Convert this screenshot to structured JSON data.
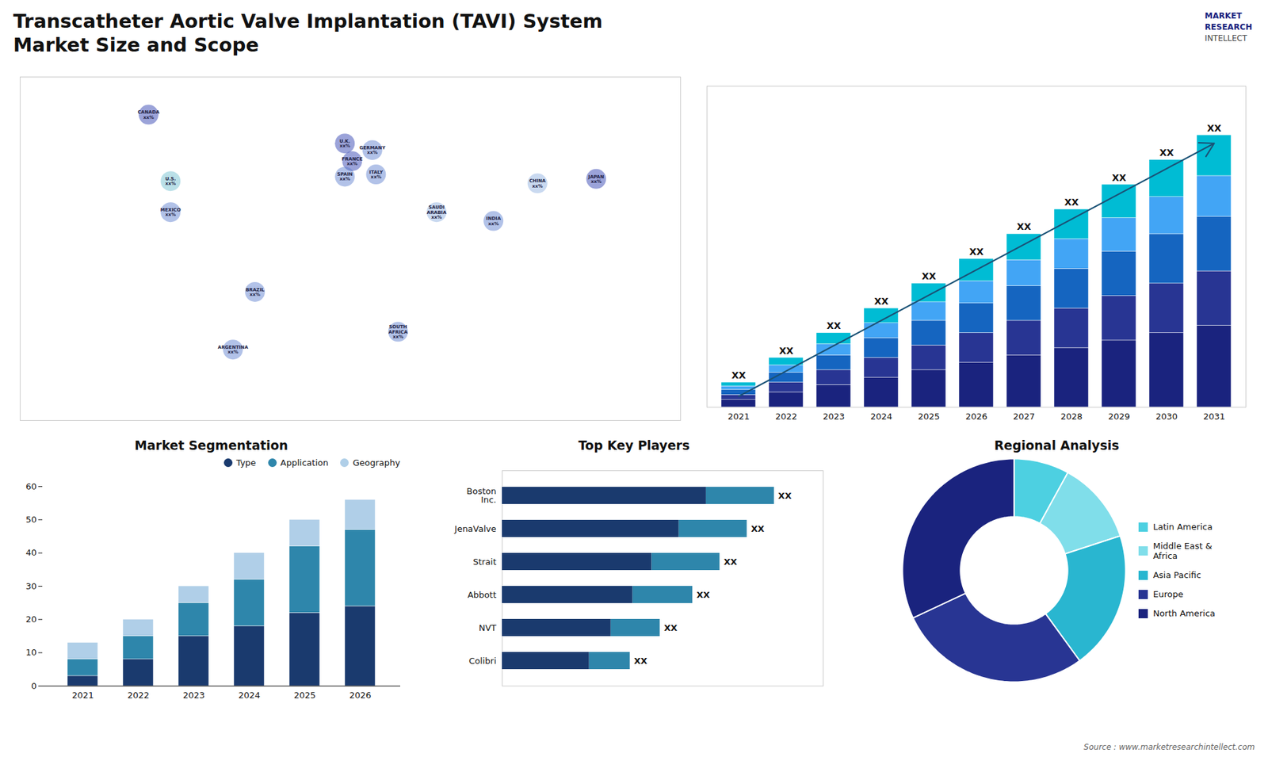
{
  "title": "Transcatheter Aortic Valve Implantation (TAVI) System",
  "subtitle": "Market Size and Scope",
  "annotations": [
    {
      "text": "MARKET",
      "color": "#1a237e"
    },
    {
      "text": "RESEARCH",
      "color": "#1a237e"
    },
    {
      "text": "INTELLECT",
      "color": "#444444"
    },
    {
      "text": "Source : www.marketresearchintellect.com",
      "color": "#666666"
    }
  ],
  "chart_data": [
    {
      "type": "map",
      "xlim": [
        -180,
        180
      ],
      "ylim": [
        -70,
        85
      ],
      "tick_labels": false,
      "annotations": [
        {
          "text": "CANADA\nxx%",
          "x": -110,
          "y": 68,
          "color": "#2233aa"
        },
        {
          "text": "U.K.\nxx%",
          "x": -3,
          "y": 55,
          "color": "#2233aa"
        },
        {
          "text": "FRANCE\nxx%",
          "x": 1,
          "y": 47,
          "color": "#2233aa"
        },
        {
          "text": "GERMANY\nxx%",
          "x": 12,
          "y": 52,
          "color": "#5577cc"
        },
        {
          "text": "SPAIN\nxx%",
          "x": -3,
          "y": 40,
          "color": "#5577cc"
        },
        {
          "text": "ITALY\nxx%",
          "x": 14,
          "y": 41,
          "color": "#5577cc"
        },
        {
          "text": "SAUDI\nARABIA\nxx%",
          "x": 47,
          "y": 24,
          "color": "#88aadd"
        },
        {
          "text": "CHINA\nxx%",
          "x": 102,
          "y": 37,
          "color": "#88aadd"
        },
        {
          "text": "JAPAN\nxx%",
          "x": 134,
          "y": 39,
          "color": "#2233aa"
        },
        {
          "text": "INDIA\nxx%",
          "x": 78,
          "y": 20,
          "color": "#5577cc"
        },
        {
          "text": "U.S.\nxx%",
          "x": -98,
          "y": 38,
          "color": "#66bbcc"
        },
        {
          "text": "MEXICO\nxx%",
          "x": -98,
          "y": 24,
          "color": "#5577cc"
        },
        {
          "text": "BRAZIL\nxx%",
          "x": -52,
          "y": -12,
          "color": "#5577cc"
        },
        {
          "text": "ARGENTINA\nxx%",
          "x": -64,
          "y": -38,
          "color": "#5577cc"
        },
        {
          "text": "SOUTH\nAFRICA\nxx%",
          "x": 26,
          "y": -30,
          "color": "#5577cc"
        }
      ]
    },
    {
      "type": "bar",
      "stacked": true,
      "categories": [
        "2021",
        "2022",
        "2023",
        "2024",
        "2025",
        "2026",
        "2027",
        "2028",
        "2029",
        "2030",
        "2031"
      ],
      "series": [
        {
          "color": "#1a237e",
          "values": [
            0.3,
            0.6,
            0.9,
            1.2,
            1.5,
            1.8,
            2.1,
            2.4,
            2.7,
            3.0,
            3.3
          ]
        },
        {
          "color": "#283593",
          "values": [
            0.2,
            0.4,
            0.6,
            0.8,
            1.0,
            1.2,
            1.4,
            1.6,
            1.8,
            2.0,
            2.2
          ]
        },
        {
          "color": "#1565c0",
          "values": [
            0.2,
            0.4,
            0.6,
            0.8,
            1.0,
            1.2,
            1.4,
            1.6,
            1.8,
            2.0,
            2.2
          ]
        },
        {
          "color": "#42a5f5",
          "values": [
            0.15,
            0.3,
            0.45,
            0.6,
            0.75,
            0.9,
            1.05,
            1.2,
            1.35,
            1.5,
            1.65
          ]
        },
        {
          "color": "#00bcd4",
          "values": [
            0.15,
            0.3,
            0.45,
            0.6,
            0.75,
            0.9,
            1.05,
            1.2,
            1.35,
            1.5,
            1.65
          ]
        }
      ],
      "ylim": [
        0,
        12.98
      ],
      "tick_labels": "x",
      "grid": false,
      "annotations": [
        {
          "text": "XX",
          "x": "2021"
        },
        {
          "text": "XX",
          "x": "2022"
        },
        {
          "text": "XX",
          "x": "2023"
        },
        {
          "text": "XX",
          "x": "2024"
        },
        {
          "text": "XX",
          "x": "2025"
        },
        {
          "text": "XX",
          "x": "2026"
        },
        {
          "text": "XX",
          "x": "2027"
        },
        {
          "text": "XX",
          "x": "2028"
        },
        {
          "text": "XX",
          "x": "2029"
        },
        {
          "text": "XX",
          "x": "2030"
        },
        {
          "text": "XX",
          "x": "2031"
        },
        {
          "type": "arrow",
          "x1": "2021",
          "y1": 0.44,
          "x2": "2031",
          "y2": 10.67,
          "color": "#1a5276"
        }
      ]
    },
    {
      "type": "bar",
      "stacked": true,
      "title": "Market Segmentation",
      "categories": [
        "2021",
        "2022",
        "2023",
        "2024",
        "2025",
        "2026"
      ],
      "series": [
        {
          "name": "Type",
          "color": "#1a3a6e",
          "values": [
            3,
            8,
            15,
            18,
            22,
            24
          ]
        },
        {
          "name": "Application",
          "color": "#2e86ab",
          "values": [
            5,
            7,
            10,
            14,
            20,
            23
          ]
        },
        {
          "name": "Geography",
          "color": "#b0cfe8",
          "values": [
            5,
            5,
            5,
            8,
            8,
            9
          ]
        }
      ],
      "ylim": [
        0,
        60
      ],
      "yticks": [
        0,
        10,
        20,
        30,
        40,
        50,
        60
      ],
      "legend": "upper right",
      "grid": false
    },
    {
      "type": "bar",
      "orientation": "horizontal",
      "stacked": true,
      "title": "Top Key Players",
      "categories": [
        "Boston\nInc.",
        "JenaValve",
        "Strait",
        "Abbott",
        "NVT",
        "Colibri"
      ],
      "series": [
        {
          "color": "#1a3a6e",
          "values": [
            7.5,
            6.5,
            5.5,
            4.8,
            4.0,
            3.2
          ]
        },
        {
          "color": "#2e86ab",
          "values": [
            2.5,
            2.5,
            2.5,
            2.2,
            1.8,
            1.5
          ]
        }
      ],
      "xlim": [
        0,
        11.8
      ],
      "tick_labels": "y",
      "grid": false,
      "annotations": [
        {
          "text": "XX",
          "y": "Boston\nInc."
        },
        {
          "text": "XX",
          "y": "JenaValve"
        },
        {
          "text": "XX",
          "y": "Strait"
        },
        {
          "text": "XX",
          "y": "Abbott"
        },
        {
          "text": "XX",
          "y": "NVT"
        },
        {
          "text": "XX",
          "y": "Colibri"
        }
      ]
    },
    {
      "type": "donut",
      "title": "Regional Analysis",
      "categories": [
        "Latin America",
        "Middle East &\nAfrica",
        "Asia Pacific",
        "Europe",
        "North America"
      ],
      "values": [
        8,
        12,
        20,
        28,
        32
      ],
      "colors": [
        "#4dd0e1",
        "#80deea",
        "#29b6d0",
        "#283593",
        "#1a237e"
      ],
      "legend": "right"
    }
  ]
}
